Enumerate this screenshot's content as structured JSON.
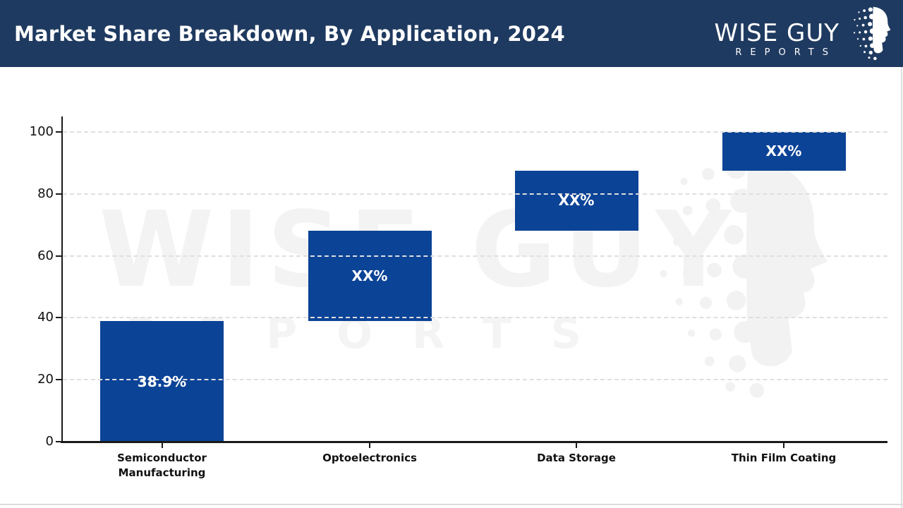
{
  "header": {
    "title": "Market Share Breakdown, By Application, 2024",
    "logo": {
      "name": "WISE GUY",
      "sub": "REPORTS"
    }
  },
  "watermark": {
    "line1": "WISE GUY",
    "line2": "REPORTS"
  },
  "chart_data": {
    "type": "bar",
    "subtype": "waterfall",
    "title": "Market Share Breakdown, By Application, 2024",
    "categories": [
      "Semiconductor Manufacturing",
      "Optoelectronics",
      "Data Storage",
      "Thin Film Coating"
    ],
    "series": [
      {
        "name": "Market Share",
        "segments": [
          {
            "start": 0,
            "end": 38.9,
            "label": "38.9%"
          },
          {
            "start": 38.9,
            "end": 68.1,
            "label": "XX%"
          },
          {
            "start": 68.1,
            "end": 87.5,
            "label": "XX%"
          },
          {
            "start": 87.5,
            "end": 100,
            "label": "XX%"
          }
        ]
      }
    ],
    "xlabel": "",
    "ylabel": "",
    "yticks": [
      0,
      20,
      40,
      60,
      80,
      100
    ],
    "ylim": [
      0,
      105
    ],
    "grid": {
      "horizontal": true,
      "style": "dashed"
    },
    "legend_position": "none"
  },
  "colors": {
    "header_bg": "#1f3a60",
    "bar": "#0b4396",
    "bar_label": "#ffffff",
    "grid": "#dfdfdf",
    "axis": "#1a1a1a",
    "watermark": "#f3f3f3"
  }
}
